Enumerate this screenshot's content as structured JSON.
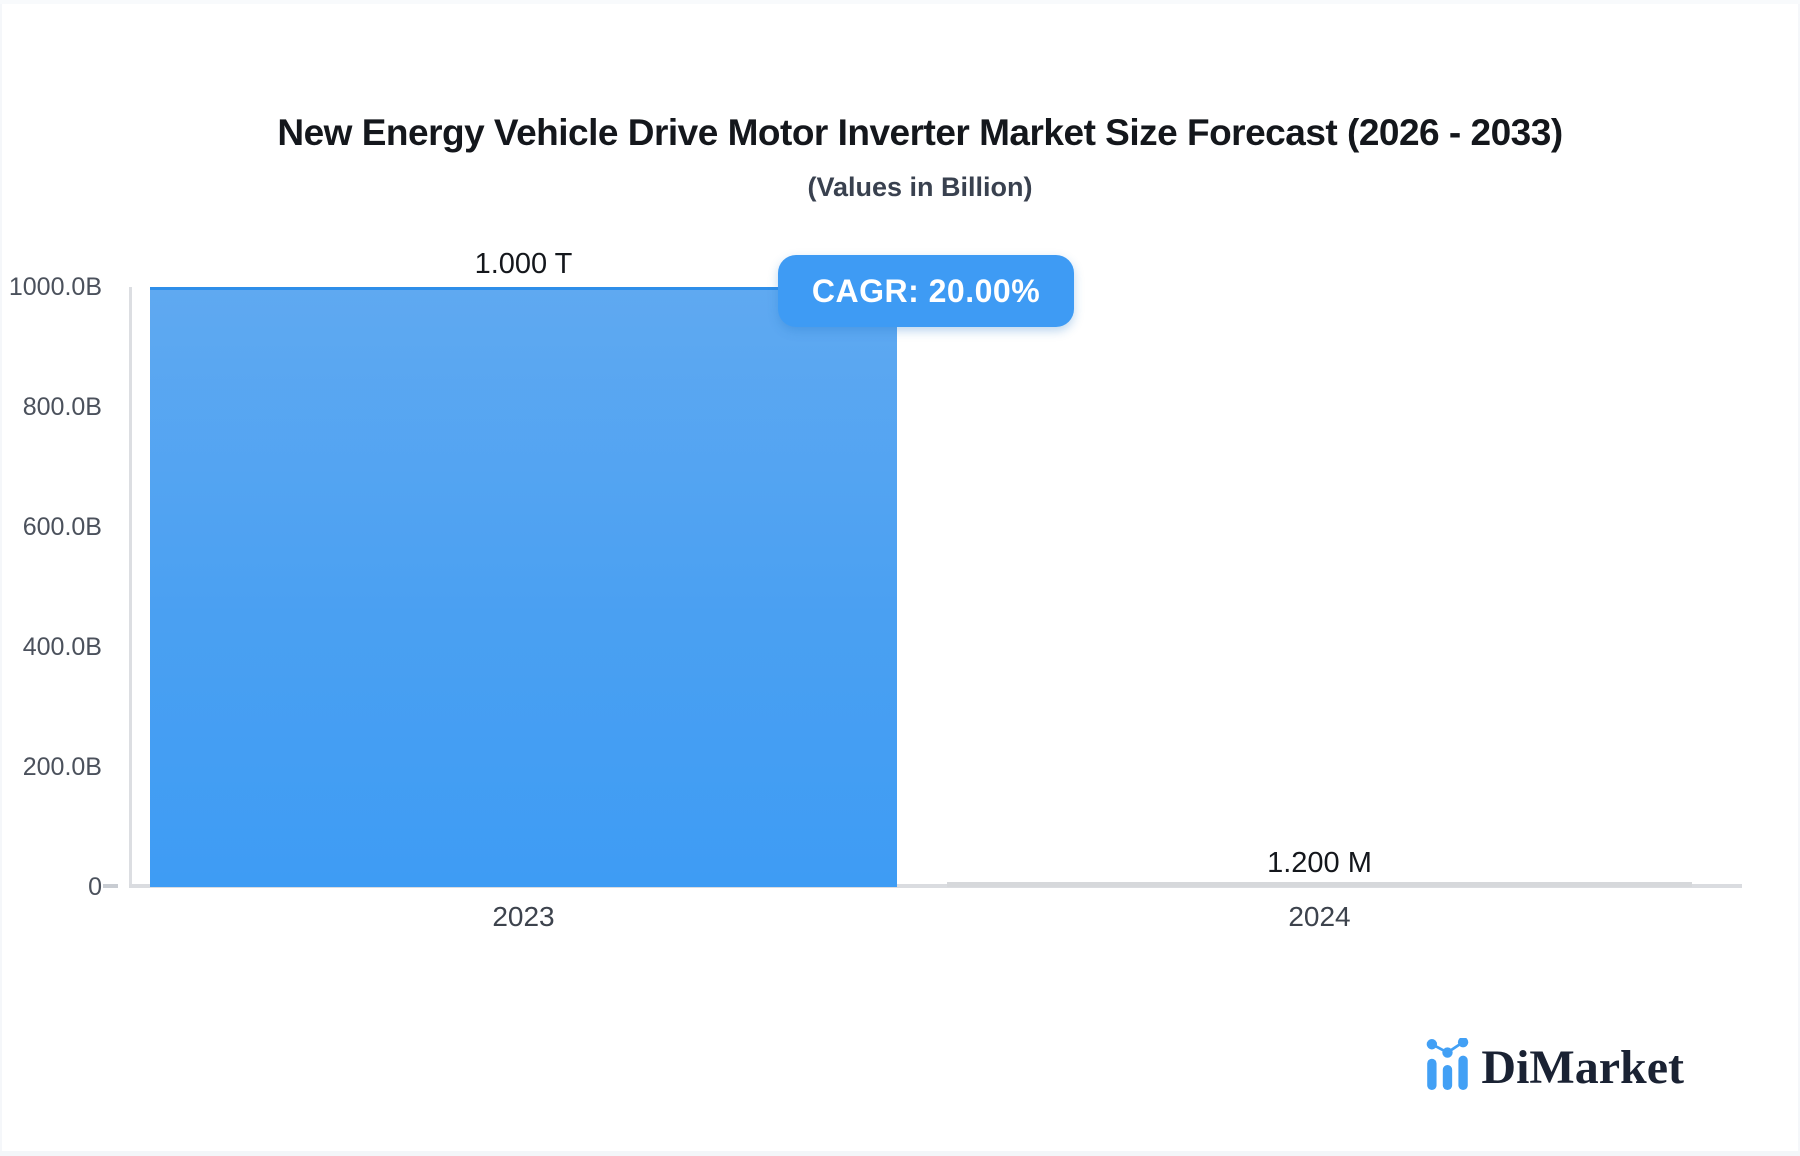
{
  "title": "New Energy Vehicle Drive Motor Inverter Market Size Forecast (2026 - 2033)",
  "subtitle": "(Values in Billion)",
  "cagr_badge": "CAGR: 20.00%",
  "logo": {
    "text": "DiMarket",
    "icon": "mini-bar-line-chart-icon"
  },
  "colors": {
    "bar_fill_top": "#5fa9f1",
    "bar_fill_bottom": "#3e9cf4",
    "bar_border_top": "#2e8ee9",
    "bar_2024_fill": "#d6d8db",
    "badge_bg": "#3e9bf4",
    "axis_line": "#dcdee2",
    "axis_label_color": "#4b515c",
    "logo_blue": "#42a0f5",
    "logo_text_color": "#1a2233"
  },
  "chart_data": {
    "type": "bar",
    "title": "New Energy Vehicle Drive Motor Inverter Market Size Forecast (2026 - 2033)",
    "subtitle": "(Values in Billion)",
    "categories": [
      "2023",
      "2024"
    ],
    "values_billion": [
      1000,
      0.0012
    ],
    "value_labels": [
      "1.000 T",
      "1.200 M"
    ],
    "ytick_labels": [
      "0",
      "200.0B",
      "400.0B",
      "600.0B",
      "800.0B",
      "1000.0B"
    ],
    "ylim_billion": [
      0,
      1000
    ],
    "grid": "off",
    "legend": "none",
    "annotations": [
      "CAGR: 20.00%"
    ]
  }
}
